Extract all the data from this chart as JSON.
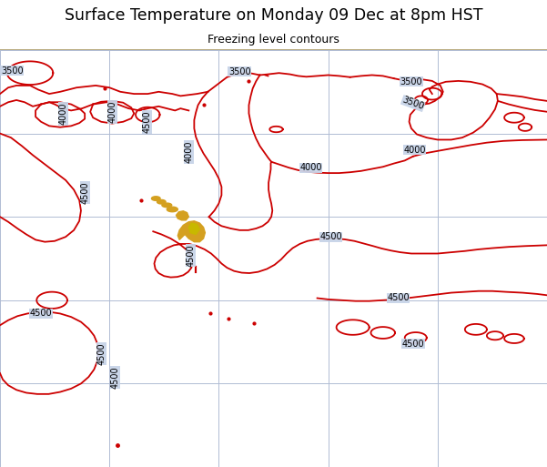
{
  "title": "Surface Temperature on Monday 09 Dec at 8pm HST",
  "subtitle": "Freezing level contours",
  "ocean_color": "#c8d4e8",
  "title_bg": "#ffffff",
  "border_color": "#b0a070",
  "contour_color": "#cc0000",
  "land_orange": "#d4a020",
  "land_yellow": "#c8b800",
  "grid_color": "#b0bcd4",
  "label_fs": 7,
  "title_fs": 12.5,
  "subtitle_fs": 9,
  "lw": 1.3
}
